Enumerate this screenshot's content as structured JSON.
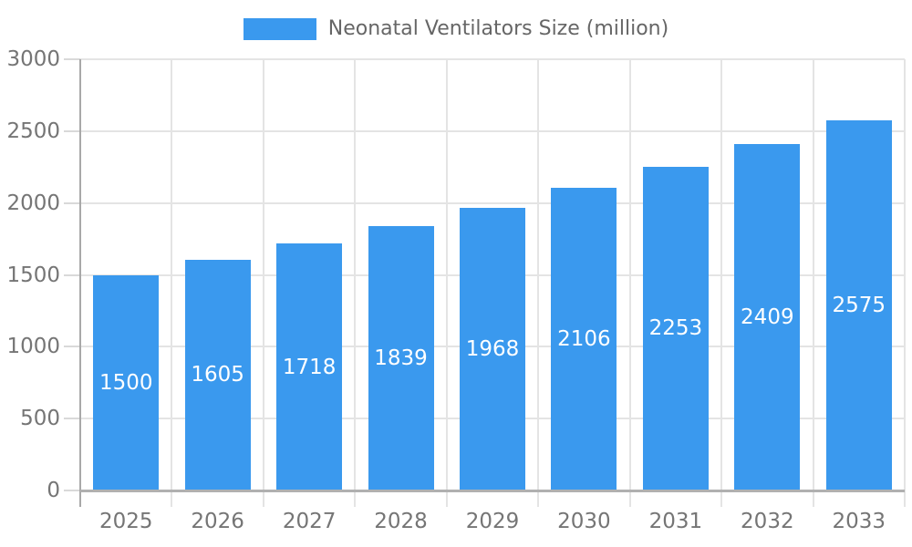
{
  "legend": {
    "position": "top"
  },
  "chart_data": {
    "type": "bar",
    "title": "Neonatal Ventilators Size (million)",
    "categories": [
      "2025",
      "2026",
      "2027",
      "2028",
      "2029",
      "2030",
      "2031",
      "2032",
      "2033"
    ],
    "series": [
      {
        "name": "Neonatal Ventilators Size (million)",
        "values": [
          1500,
          1605,
          1718,
          1839,
          1968,
          2106,
          2253,
          2409,
          2575
        ]
      }
    ],
    "xlabel": "",
    "ylabel": "",
    "ylim": [
      0,
      3000
    ],
    "y_ticks": [
      0,
      500,
      1000,
      1500,
      2000,
      2500,
      3000
    ],
    "grid": true,
    "legend_position": "top",
    "bar_label_position": "inside-center"
  },
  "colors": {
    "bar": "#3A99EE",
    "grid": "#e4e4e4",
    "tick": "#d9d9d9",
    "axis": "#a8a8a8",
    "baseline": "#b0b0b0",
    "tick_text": "#757575",
    "legend_text": "#666666",
    "value_text": "#ffffff",
    "background": "#ffffff"
  }
}
